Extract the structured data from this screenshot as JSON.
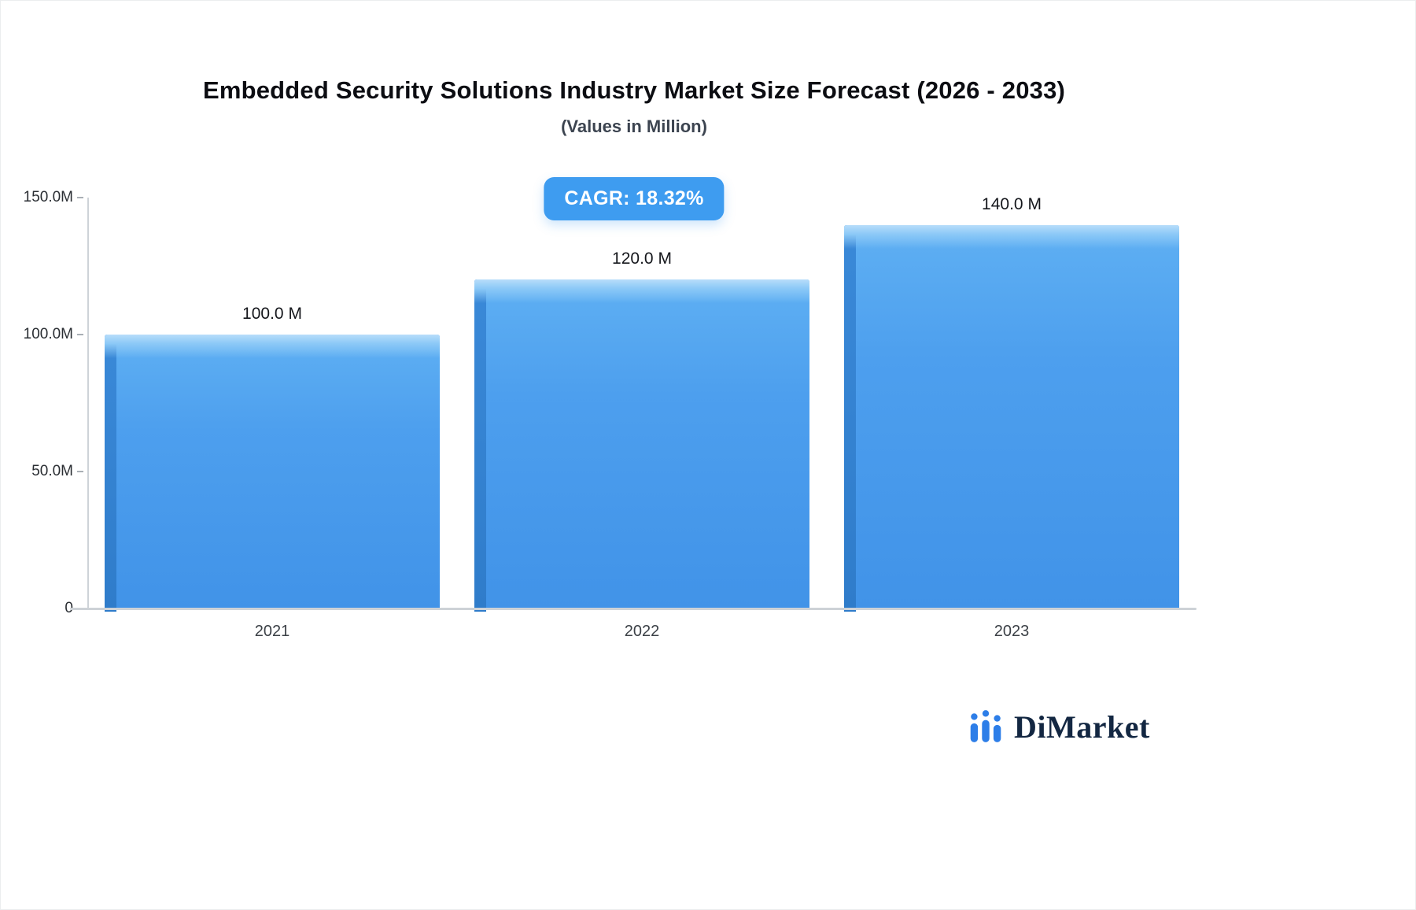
{
  "title": "Embedded Security Solutions Industry Market Size Forecast (2026 - 2033)",
  "subtitle": "(Values in Million)",
  "badge": {
    "label": "CAGR: 18.32%",
    "bg": "#3E9CF0",
    "text_color": "#ffffff"
  },
  "logo": {
    "name": "DiMarket",
    "icon": "bar-chart-icon",
    "icon_color": "#2d7ee8",
    "text_color": "#132742"
  },
  "chart_data": {
    "type": "bar",
    "categories": [
      "2021",
      "2022",
      "2023"
    ],
    "values": [
      100,
      120,
      140
    ],
    "value_labels": [
      "100.0 M",
      "120.0 M",
      "140.0 M"
    ],
    "title": "Embedded Security Solutions Industry Market Size Forecast (2026 - 2033)",
    "subtitle": "(Values in Million)",
    "xlabel": "",
    "ylabel": "",
    "ylim": [
      0,
      150
    ],
    "yticks": [
      {
        "value": 0,
        "label": "0"
      },
      {
        "value": 50,
        "label": "50.0M"
      },
      {
        "value": 100,
        "label": "100.0M"
      },
      {
        "value": 150,
        "label": "150.0M"
      }
    ],
    "bar_color": "#4BA0EF",
    "bar_side_color": "#2f7cca",
    "bar_highlight_color": "#8cc9f7",
    "grid": false,
    "legend": "none"
  }
}
